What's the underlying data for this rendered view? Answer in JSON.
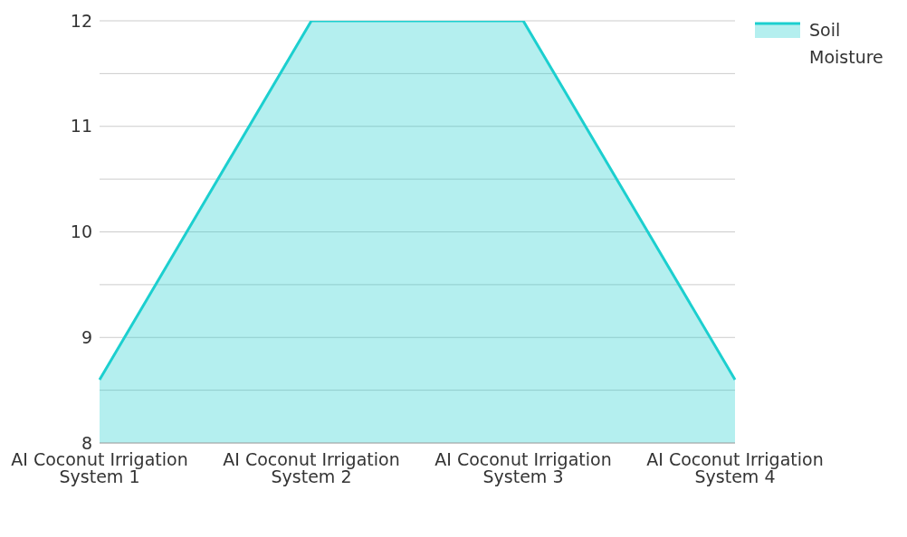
{
  "chart_data": {
    "type": "area",
    "categories": [
      "AI Coconut Irrigation System 1",
      "AI Coconut Irrigation System 2",
      "AI Coconut Irrigation System 3",
      "AI Coconut Irrigation System 4"
    ],
    "series": [
      {
        "name": "Soil Moisture",
        "color": "#1ccfcf",
        "values": [
          8.6,
          12,
          12,
          8.6
        ]
      }
    ],
    "ylim": [
      8,
      12
    ],
    "yticks": [
      8,
      {
        "value": 8.5,
        "label": null
      },
      9,
      {
        "value": 9.5,
        "label": null
      },
      10,
      {
        "value": 10.5,
        "label": null
      },
      11,
      {
        "value": 11.5,
        "label": null
      },
      12
    ],
    "grid": "y",
    "legend": "top right",
    "marker": "none"
  }
}
